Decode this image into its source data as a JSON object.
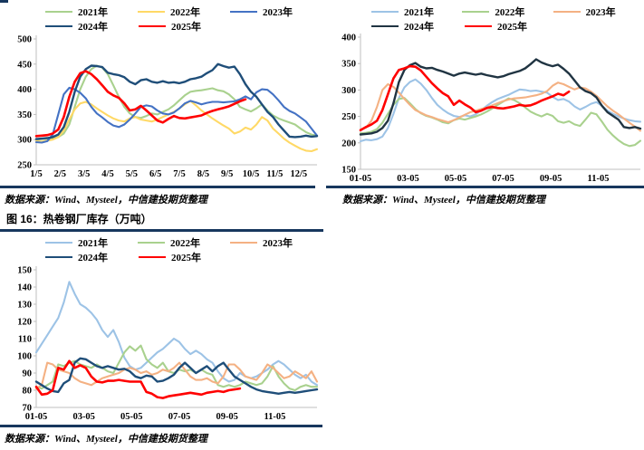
{
  "figure_title": "图 16：热卷钢厂库存（万吨）",
  "source_note": "数据来源：Wind、Mysteel，中信建投期货整理",
  "accent_rule_color": "#17375E",
  "chart_data": [
    {
      "type": "line",
      "title": "",
      "ylim": [
        250,
        500
      ],
      "y_tick_step": 50,
      "x_domain_weeks": [
        0,
        51
      ],
      "x_tick_labels": [
        "1/5",
        "2/5",
        "3/5",
        "4/5",
        "5/5",
        "6/5",
        "7/5",
        "8/5",
        "9/5",
        "10/5",
        "11/5",
        "12/5"
      ],
      "x_tick_weeks": [
        0,
        4.33,
        8.67,
        13,
        17.33,
        21.67,
        26,
        30.33,
        34.67,
        39,
        43.33,
        47.67
      ],
      "legend_position": "top",
      "grid": false,
      "series": [
        {
          "name": "2021年",
          "color": "#A9D18E",
          "width": 2.1,
          "values": [
            300,
            301,
            302,
            303,
            305,
            312,
            330,
            365,
            400,
            425,
            440,
            447,
            443,
            430,
            408,
            385,
            365,
            352,
            345,
            343,
            347,
            352,
            350,
            355,
            360,
            368,
            378,
            388,
            395,
            397,
            398,
            400,
            402,
            398,
            396,
            390,
            380,
            365,
            360,
            356,
            362,
            370,
            358,
            348,
            342,
            338,
            334,
            330,
            322,
            315,
            310,
            308
          ]
        },
        {
          "name": "2022年",
          "color": "#FFD966",
          "width": 2.1,
          "values": [
            297,
            296,
            298,
            300,
            305,
            318,
            340,
            360,
            372,
            375,
            370,
            362,
            355,
            348,
            342,
            338,
            336,
            342,
            345,
            340,
            338,
            336,
            340,
            345,
            350,
            355,
            362,
            370,
            377,
            368,
            358,
            350,
            342,
            335,
            328,
            322,
            312,
            316,
            324,
            320,
            330,
            345,
            338,
            322,
            312,
            302,
            294,
            288,
            282,
            278,
            277,
            281
          ]
        },
        {
          "name": "2023年",
          "color": "#4472C4",
          "width": 2.1,
          "values": [
            295,
            294,
            297,
            310,
            350,
            390,
            403,
            400,
            393,
            382,
            365,
            352,
            344,
            335,
            328,
            325,
            330,
            340,
            352,
            365,
            368,
            366,
            358,
            352,
            350,
            354,
            362,
            372,
            377,
            374,
            370,
            373,
            375,
            375,
            374,
            375,
            376,
            380,
            386,
            380,
            394,
            400,
            399,
            390,
            378,
            365,
            357,
            352,
            344,
            336,
            322,
            308
          ]
        },
        {
          "name": "2024年",
          "color": "#1F4E79",
          "width": 2.4,
          "values": [
            301,
            302,
            303,
            305,
            310,
            325,
            355,
            395,
            425,
            440,
            447,
            446,
            444,
            433,
            430,
            428,
            424,
            415,
            410,
            418,
            420,
            415,
            413,
            416,
            413,
            414,
            412,
            415,
            420,
            422,
            425,
            432,
            438,
            450,
            446,
            443,
            445,
            430,
            410,
            395,
            385,
            370,
            355,
            345,
            330,
            318,
            306,
            305,
            306,
            308,
            306,
            307
          ]
        },
        {
          "name": "2025年",
          "color": "#FF0000",
          "width": 2.6,
          "values": [
            307,
            308,
            309,
            312,
            320,
            345,
            385,
            415,
            432,
            436,
            430,
            420,
            408,
            395,
            388,
            383,
            372,
            358,
            360,
            367,
            358,
            348,
            338,
            334,
            341,
            347,
            343,
            342,
            344,
            346,
            348,
            353,
            357,
            360,
            363,
            366,
            371,
            376,
            380
          ]
        }
      ]
    },
    {
      "type": "line",
      "title": "",
      "ylim": [
        150,
        400
      ],
      "y_tick_step": 50,
      "x_domain_weeks": [
        0,
        51
      ],
      "x_tick_labels": [
        "01-05",
        "03-05",
        "05-05",
        "07-05",
        "09-05",
        "11-05"
      ],
      "x_tick_weeks": [
        0,
        8.67,
        17.33,
        26,
        34.67,
        43.33
      ],
      "legend_position": "top",
      "grid": false,
      "series": [
        {
          "name": "2021年",
          "color": "#9DC3E6",
          "width": 2.1,
          "values": [
            203,
            206,
            205,
            207,
            212,
            228,
            255,
            285,
            305,
            315,
            320,
            312,
            300,
            285,
            272,
            263,
            256,
            251,
            249,
            252,
            250,
            254,
            262,
            270,
            277,
            283,
            287,
            291,
            296,
            301,
            300,
            298,
            299,
            297,
            295,
            287,
            281,
            283,
            278,
            269,
            263,
            268,
            274,
            277,
            270,
            261,
            255,
            250,
            246,
            243,
            241,
            240
          ]
        },
        {
          "name": "2022年",
          "color": "#A9D18E",
          "width": 2.1,
          "values": [
            218,
            219,
            221,
            226,
            238,
            255,
            272,
            283,
            285,
            275,
            264,
            256,
            251,
            248,
            244,
            239,
            237,
            243,
            246,
            244,
            247,
            250,
            254,
            259,
            265,
            272,
            278,
            284,
            281,
            275,
            267,
            259,
            254,
            250,
            255,
            251,
            241,
            238,
            241,
            235,
            232,
            244,
            257,
            254,
            240,
            225,
            214,
            205,
            198,
            194,
            196,
            204
          ]
        },
        {
          "name": "2023年",
          "color": "#F4B183",
          "width": 2.1,
          "values": [
            225,
            229,
            242,
            268,
            300,
            311,
            306,
            295,
            283,
            272,
            262,
            257,
            252,
            249,
            245,
            242,
            239,
            243,
            248,
            253,
            258,
            261,
            264,
            267,
            271,
            275,
            279,
            282,
            284,
            285,
            286,
            288,
            290,
            293,
            298,
            308,
            314,
            311,
            306,
            301,
            305,
            303,
            297,
            289,
            279,
            269,
            261,
            254,
            246,
            238,
            231,
            223
          ]
        },
        {
          "name": "2024年",
          "color": "#203442",
          "width": 2.4,
          "values": [
            216,
            217,
            218,
            221,
            228,
            242,
            275,
            315,
            338,
            347,
            351,
            344,
            341,
            342,
            338,
            335,
            331,
            327,
            331,
            333,
            331,
            329,
            331,
            328,
            326,
            324,
            326,
            330,
            333,
            336,
            341,
            349,
            358,
            352,
            348,
            345,
            348,
            340,
            331,
            318,
            305,
            298,
            294,
            286,
            270,
            258,
            251,
            244,
            230,
            228,
            230,
            227
          ]
        },
        {
          "name": "2025年",
          "color": "#FF0000",
          "width": 2.6,
          "values": [
            224,
            230,
            235,
            242,
            262,
            292,
            322,
            338,
            341,
            345,
            344,
            337,
            325,
            313,
            303,
            294,
            288,
            272,
            280,
            273,
            267,
            258,
            261,
            266,
            268,
            266,
            265,
            267,
            269,
            272,
            270,
            271,
            275,
            280,
            284,
            288,
            293,
            290,
            297
          ]
        }
      ]
    },
    {
      "type": "line",
      "title": "图 16：热卷钢厂库存（万吨）",
      "ylim": [
        70,
        150
      ],
      "y_tick_step": 10,
      "x_domain_weeks": [
        0,
        51
      ],
      "x_tick_labels": [
        "01-05",
        "03-05",
        "05-05",
        "07-05",
        "09-05",
        "11-05"
      ],
      "x_tick_weeks": [
        0,
        8.67,
        17.33,
        26,
        34.67,
        43.33
      ],
      "legend_position": "top",
      "grid": false,
      "series": [
        {
          "name": "2021年",
          "color": "#9DC3E6",
          "width": 2.1,
          "values": [
            102,
            107,
            112,
            117,
            122,
            131,
            143,
            136,
            130,
            128,
            125,
            121,
            115,
            111,
            115,
            108,
            99,
            94,
            92,
            93,
            96,
            99,
            102,
            104,
            107,
            110,
            108,
            104,
            101,
            103,
            101,
            98,
            96,
            91,
            87,
            85,
            86,
            90,
            88,
            87,
            88,
            90,
            92,
            95,
            97,
            95,
            92,
            89,
            87,
            89,
            85,
            83
          ]
        },
        {
          "name": "2022年",
          "color": "#A9D18E",
          "width": 2.1,
          "values": [
            82,
            81,
            83,
            85,
            95,
            94,
            96,
            97,
            95,
            94,
            93,
            95,
            93,
            91,
            90,
            96,
            102,
            105.5,
            103,
            106,
            98,
            95,
            93,
            96,
            91,
            90,
            92,
            91,
            92,
            90,
            92,
            90,
            89,
            83,
            82,
            83,
            82,
            83,
            85,
            84,
            83,
            84,
            88,
            94,
            88,
            84,
            81,
            80,
            82,
            83,
            82,
            82
          ]
        },
        {
          "name": "2023年",
          "color": "#F4B183",
          "width": 2.1,
          "values": [
            81,
            83,
            96,
            95,
            92,
            91,
            90,
            87,
            85,
            84,
            83,
            85,
            87,
            88,
            89,
            90,
            92,
            93,
            92,
            90,
            91,
            89,
            90,
            92,
            91,
            93,
            96,
            92,
            88,
            86,
            86,
            87,
            85,
            84,
            88,
            95,
            95,
            92,
            88,
            87,
            86,
            90,
            95,
            93,
            90,
            87,
            88,
            91,
            89,
            87,
            91,
            85
          ]
        },
        {
          "name": "2024年",
          "color": "#1F4E79",
          "width": 2.4,
          "values": [
            85,
            83,
            81,
            79.5,
            79,
            84,
            86,
            96,
            98.5,
            98,
            96,
            94,
            93,
            94,
            93,
            92,
            92.5,
            91,
            88,
            87,
            88.5,
            88,
            85,
            85.5,
            87,
            89,
            93,
            96,
            93,
            90,
            92,
            94,
            91,
            94,
            96,
            92,
            88,
            86,
            84,
            82,
            80.5,
            79.5,
            79,
            78.5,
            78,
            78.5,
            79,
            78.5,
            79,
            79.5,
            80,
            80.5
          ]
        },
        {
          "name": "2025年",
          "color": "#FF0000",
          "width": 2.6,
          "values": [
            82,
            77.5,
            78,
            80,
            93,
            92,
            97,
            93,
            94.5,
            93,
            88,
            85,
            84.5,
            85.5,
            85.5,
            86,
            85.5,
            85,
            85,
            85,
            79,
            78,
            76,
            75.5,
            76.5,
            77,
            77.5,
            78,
            78.5,
            78,
            77.5,
            78.5,
            79,
            79.5,
            79,
            80,
            80.5,
            81
          ]
        }
      ]
    }
  ]
}
